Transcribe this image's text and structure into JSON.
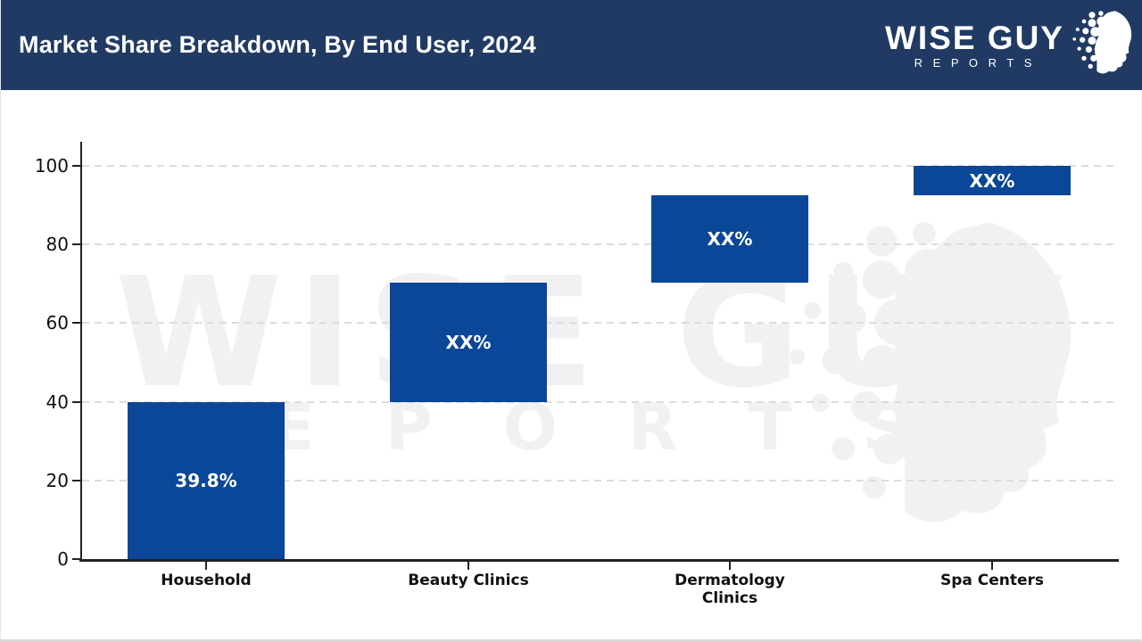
{
  "header": {
    "title": "Market Share Breakdown, By End User, 2024",
    "bg_color": "#213a63",
    "logo": {
      "line1": "WISE GUY",
      "line2": "R E P O R T S"
    }
  },
  "watermark": {
    "line1": "WISE GUY",
    "line2": "R E P O R T S"
  },
  "chart_data": {
    "type": "bar",
    "subtype": "waterfall",
    "title": "Market Share Breakdown, By End User, 2024",
    "categories": [
      "Household",
      "Beauty Clinics",
      "Dermatology Clinics",
      "Spa Centers"
    ],
    "category_lines": [
      [
        "Household"
      ],
      [
        "Beauty Clinics"
      ],
      [
        "Dermatology",
        "Clinics"
      ],
      [
        "Spa Centers"
      ]
    ],
    "segments": [
      {
        "category": "Household",
        "start": 0,
        "end": 39.8,
        "label": "39.8%"
      },
      {
        "category": "Beauty Clinics",
        "start": 39.8,
        "end": 70.2,
        "label": "XX%"
      },
      {
        "category": "Dermatology Clinics",
        "start": 70.2,
        "end": 92.5,
        "label": "XX%"
      },
      {
        "category": "Spa Centers",
        "start": 92.5,
        "end": 100,
        "label": "XX%"
      }
    ],
    "ylim": [
      0,
      100
    ],
    "yticks": [
      0,
      20,
      40,
      60,
      80,
      100
    ],
    "grid": "horizontal-dashed",
    "legend": "none",
    "bar_color": "#0b4798",
    "bar_label_color": "#ffffff",
    "axis_color": "#222222",
    "gridline_color": "#dcdcdc"
  }
}
